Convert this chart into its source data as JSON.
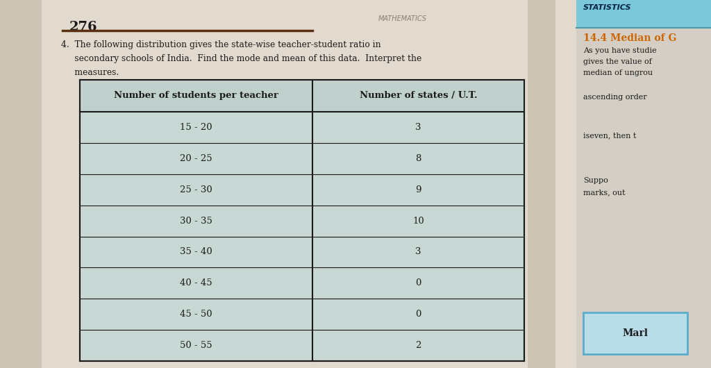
{
  "page_number": "276",
  "col1_header": "Number of students per teacher",
  "col2_header": "Number of states / U.T.",
  "rows": [
    [
      "15 - 20",
      "3"
    ],
    [
      "20 - 25",
      "8"
    ],
    [
      "25 - 30",
      "9"
    ],
    [
      "30 - 35",
      "10"
    ],
    [
      "35 - 40",
      "3"
    ],
    [
      "40 - 45",
      "0"
    ],
    [
      "45 - 50",
      "0"
    ],
    [
      "50 - 55",
      "2"
    ]
  ],
  "question_line1": "4.  The following distribution gives the state-wise teacher-student ratio in",
  "question_line2": "     secondary schools of India.  Find the mode and mean of this data.  Interpret the",
  "question_line3": "     measures.",
  "watermark": "MATHEMATICS",
  "right_header": "STATISTICS",
  "right_subheader": "14.4 Median of G",
  "right_texts": [
    "As you have studie",
    "gives the value of",
    "median of ungrou",
    "",
    "ascending order",
    "",
    "iseven, then t",
    "",
    "Suppo",
    "marks, out"
  ],
  "right_box_text": "Marl",
  "bg_left": "#d8cfc0",
  "bg_right": "#c8c0b0",
  "page_bg": "#e8e0d0",
  "table_bg": "#c8d8d4",
  "header_bg": "#c0d0cc",
  "right_panel_bg": "#d0ccc0",
  "cyan_bar": "#7ac8d8",
  "right_box_bg": "#b8dce8",
  "right_box_border": "#5aaccc",
  "text_dark": "#1a1a1a",
  "text_brown": "#3a2010",
  "subheader_color": "#cc6600",
  "line_color": "#5a3010"
}
